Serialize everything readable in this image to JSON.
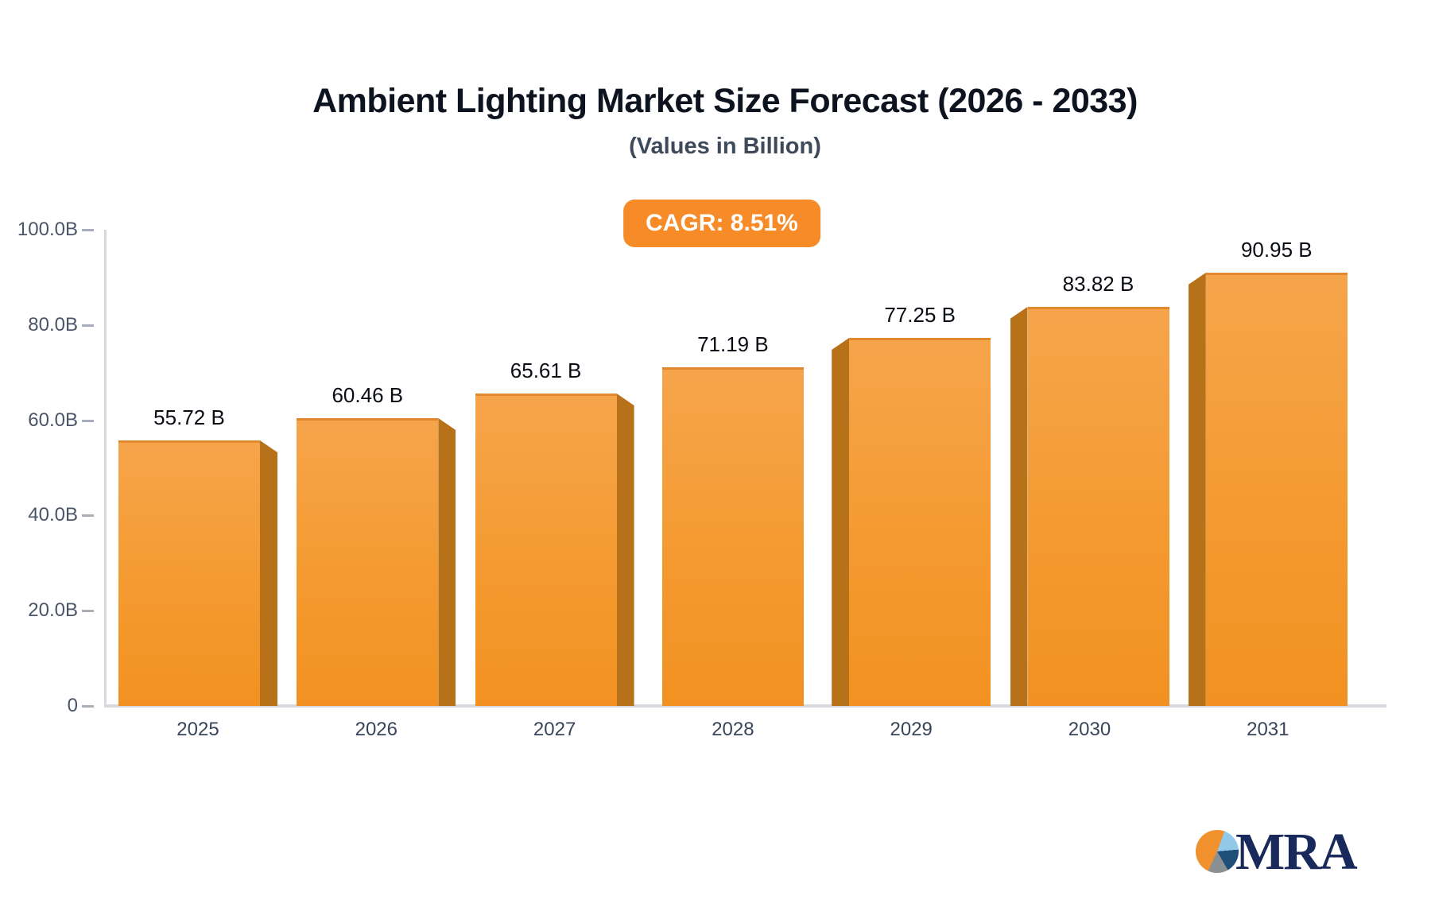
{
  "header": {
    "title": "Ambient Lighting Market Size Forecast (2026 - 2033)",
    "subtitle": "(Values in Billion)",
    "badge_label": "CAGR: 8.51%"
  },
  "colors": {
    "badge_bg": "#f68b28",
    "badge_text": "#ffffff",
    "bar_top": "#f6a44b",
    "bar_bottom": "#f29121",
    "bar_side": "#b77118",
    "bar_top_edge": "#e0882b",
    "axis": "#d6dadf",
    "logo_navy": "#19295b",
    "logo_orange": "#f0912d",
    "logo_light_blue": "#92c8e8",
    "logo_dark_blue": "#1f4e79",
    "logo_gray": "#8a8f94"
  },
  "chart_data": {
    "type": "bar",
    "title": "Ambient Lighting Market Size Forecast (2026 - 2033)",
    "subtitle": "(Values in Billion)",
    "annotation": "CAGR: 8.51%",
    "categories": [
      "2025",
      "2026",
      "2027",
      "2028",
      "2029",
      "2030",
      "2031"
    ],
    "values": [
      55.72,
      60.46,
      65.61,
      71.19,
      77.25,
      83.82,
      90.95
    ],
    "value_labels": [
      "55.72 B",
      "60.46 B",
      "65.61 B",
      "71.19 B",
      "77.25 B",
      "83.82 B",
      "90.95 B"
    ],
    "series_unit": "Billion",
    "xlabel": "",
    "ylabel": "",
    "ylim": [
      0,
      100
    ],
    "yticks": [
      100,
      80,
      60,
      40,
      20,
      0
    ],
    "ytick_labels": [
      "100.0B",
      "80.0B",
      "60.0B",
      "40.0B",
      "20.0B",
      "0"
    ],
    "grid": false,
    "legend": false,
    "bar_style": "3d-orange"
  },
  "logo": {
    "text": "MRA"
  }
}
